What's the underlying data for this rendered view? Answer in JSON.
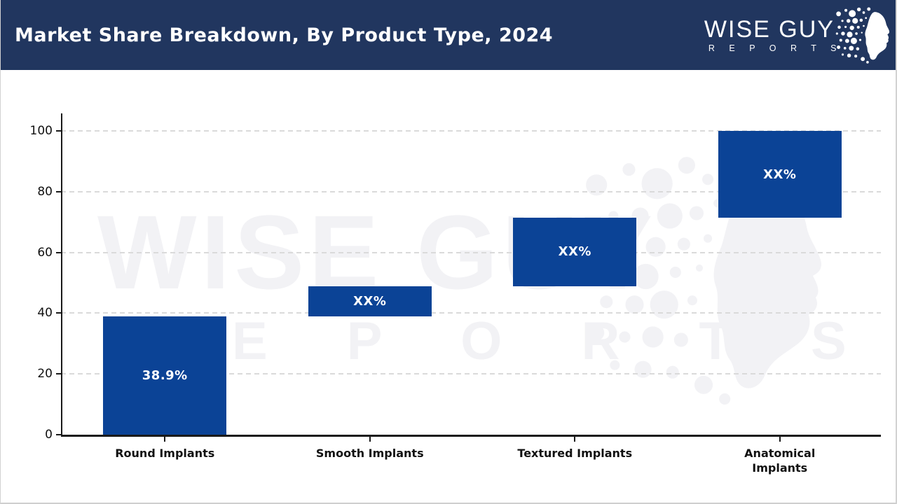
{
  "header": {
    "title": "Market Share Breakdown, By Product Type, 2024",
    "logo": {
      "line1": "WISE GUY",
      "line2": "R E P O R T S",
      "face_icon": "dotted-head-profile"
    }
  },
  "watermark": {
    "line1": "WISE GUY",
    "line2": "R E P O R T S",
    "face_icon": "dotted-head-profile"
  },
  "chart_data": {
    "type": "bar",
    "subtype": "waterfall",
    "title": "Market Share Breakdown, By Product Type, 2024",
    "categories": [
      "Round Implants",
      "Smooth Implants",
      "Textured Implants",
      "Anatomical\nImplants"
    ],
    "bars": [
      {
        "category": "Round Implants",
        "start": 0,
        "end": 38.9,
        "value_label": "38.9%"
      },
      {
        "category": "Smooth Implants",
        "start": 38.9,
        "end": 48.9,
        "value_label": "XX%"
      },
      {
        "category": "Textured Implants",
        "start": 48.9,
        "end": 71.4,
        "value_label": "XX%"
      },
      {
        "category": "Anatomical Implants",
        "start": 71.4,
        "end": 100,
        "value_label": "XX%"
      }
    ],
    "xlabel": "",
    "ylabel": "",
    "ylim": [
      0,
      100
    ],
    "yticks": [
      0,
      20,
      40,
      60,
      80,
      100
    ],
    "grid": "horizontal-dashed",
    "legend": null,
    "colors": {
      "bar": "#0b4396",
      "bar_label": "#ffffff",
      "axis": "#1a1a1a",
      "gridline": "#dadada",
      "header_bg": "#21365f",
      "watermark": "#f2f2f5"
    }
  }
}
